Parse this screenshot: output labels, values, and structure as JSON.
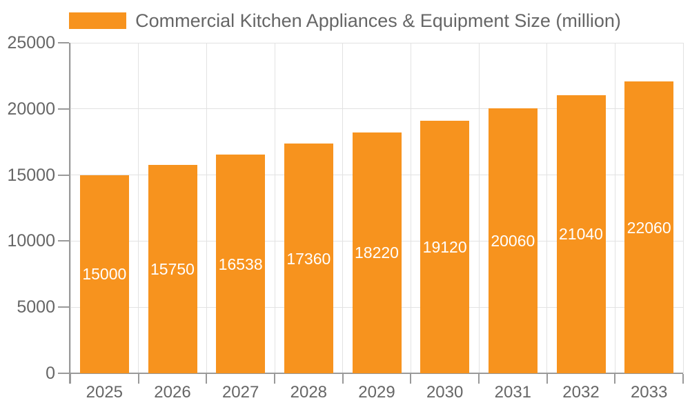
{
  "chart_data": {
    "type": "bar",
    "title": "Commercial Kitchen Appliances & Equipment Size (million)",
    "categories": [
      "2025",
      "2026",
      "2027",
      "2028",
      "2029",
      "2030",
      "2031",
      "2032",
      "2033"
    ],
    "values": [
      15000,
      15750,
      16538,
      17360,
      18220,
      19120,
      20060,
      21040,
      22060
    ],
    "yticks": [
      0,
      5000,
      10000,
      15000,
      20000,
      25000
    ],
    "ylim": [
      0,
      25000
    ],
    "xlabel": "",
    "ylabel": "",
    "grid": true,
    "legend_position": "top",
    "colors": {
      "bar": "#F7931E",
      "value_text": "#FFFFFF",
      "label_text": "#666666",
      "axis": "#999999",
      "grid": "#E2E2E2",
      "background": "#FFFFFF"
    }
  }
}
